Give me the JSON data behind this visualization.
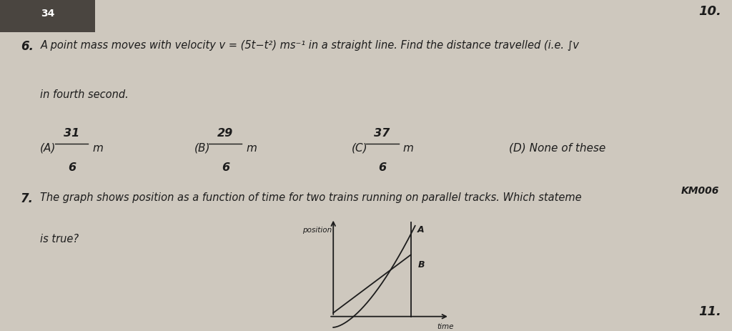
{
  "background_color": "#cec8be",
  "q6_number": "6.",
  "q7_number": "7.",
  "q6_line1": "A point mass moves with velocity v = (5t−t²) ms⁻¹ in a straight line. Find the distance travelled (i.e. ∫v",
  "q6_line2": "in fourth second.",
  "opt_A_num": "31",
  "opt_A_den": "6",
  "opt_B_num": "29",
  "opt_B_den": "6",
  "opt_C_num": "37",
  "opt_C_den": "6",
  "opt_D": "(D) None of these",
  "km_label": "KM006",
  "q7_line1": "The graph shows position as a function of time for two trains running on parallel tracks. Which stateme",
  "q7_line2": "is true?",
  "graph_ylabel": "position",
  "graph_xlabel": "time",
  "curve_A": "A",
  "curve_B": "B",
  "label_10": "10.",
  "label_11": "11.",
  "text_color": "#1c1c1c",
  "dark_box_color": "#3a3530",
  "page_num_34": "34"
}
